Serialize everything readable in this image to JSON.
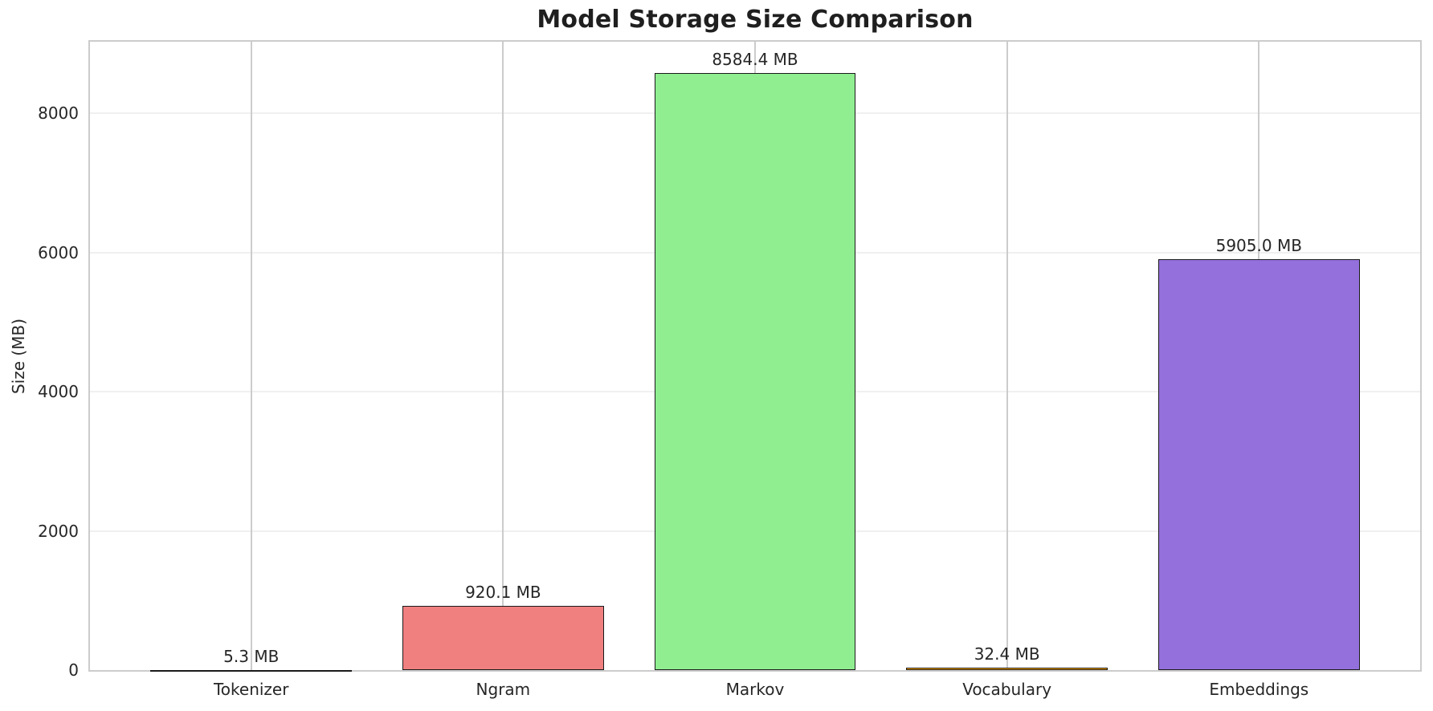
{
  "title": "Model Storage Size Comparison",
  "chart_data": {
    "type": "bar",
    "title": "Model Storage Size Comparison",
    "xlabel": "",
    "ylabel": "Size (MB)",
    "categories": [
      "Tokenizer",
      "Ngram",
      "Markov",
      "Vocabulary",
      "Embeddings"
    ],
    "values": [
      5.3,
      920.1,
      8584.4,
      32.4,
      5905.0
    ],
    "bar_labels": [
      "5.3 MB",
      "920.1 MB",
      "8584.4 MB",
      "32.4 MB",
      "5905.0 MB"
    ],
    "bar_colors": [
      "#87CEEB",
      "#F08080",
      "#90EE90",
      "#FFA500",
      "#9370DB"
    ],
    "bar_edge_color": "#1a1a1a",
    "yticks": [
      0,
      2000,
      4000,
      6000,
      8000
    ],
    "ylim": [
      0,
      9030
    ],
    "grid": true,
    "legend": false,
    "styles": {
      "h_grid_color": "#f0f0f0",
      "v_grid_color": "#cccccc",
      "spine_color": "#cccccc",
      "text_color": "#262626",
      "title_color": "#1f1f1f",
      "background": "#ffffff"
    }
  }
}
